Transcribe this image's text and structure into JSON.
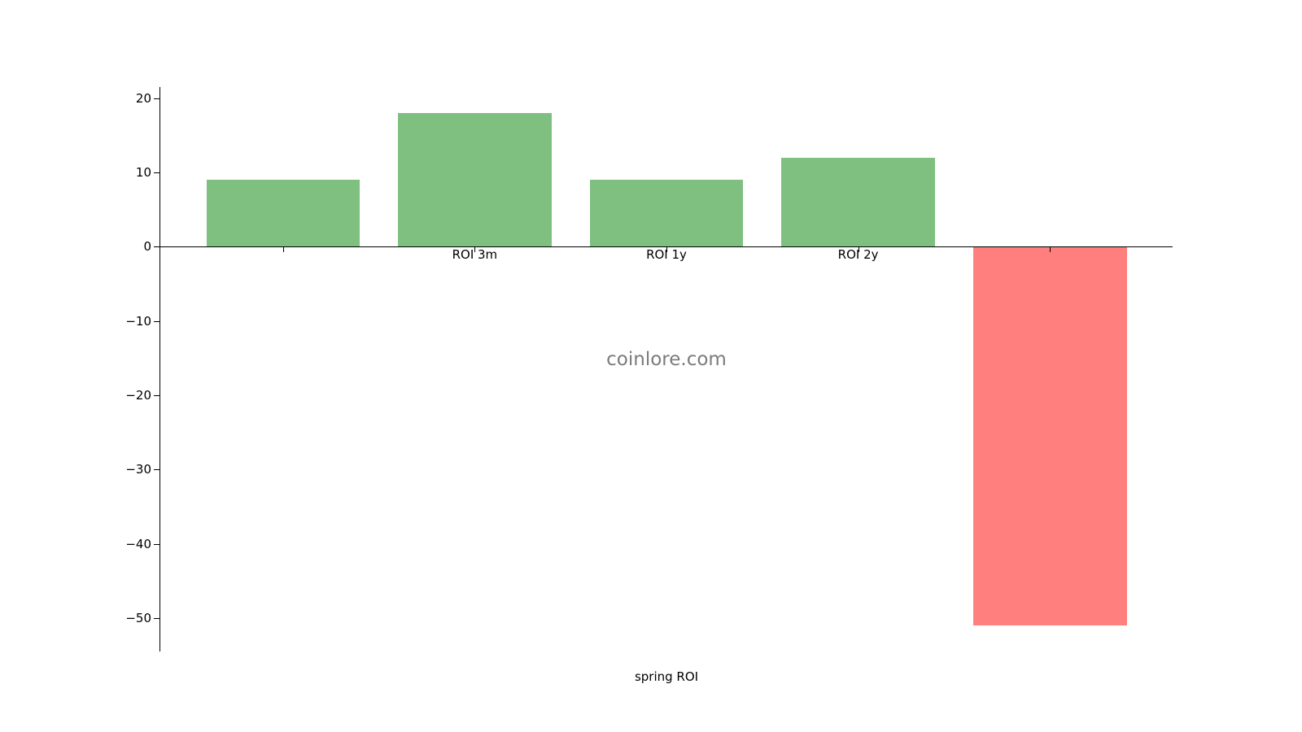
{
  "chart_data": {
    "type": "bar",
    "title": "",
    "xlabel": "spring ROI",
    "ylabel": "",
    "categories": [
      "",
      "ROI 3m",
      "ROI 1y",
      "ROI 2y",
      ""
    ],
    "values": [
      9,
      18,
      9,
      12,
      -51
    ],
    "bar_colors": [
      "#7fbf7f",
      "#7fbf7f",
      "#7fbf7f",
      "#7fbf7f",
      "#ff7f7f"
    ],
    "positive_color": "#7fbf7f",
    "negative_color": "#ff7f7f",
    "ylim": [
      -54.5,
      21.5
    ],
    "ytick_values": [
      20,
      10,
      0,
      -10,
      -20,
      -30,
      -40,
      -50
    ],
    "ytick_labels": [
      "20",
      "10",
      "0",
      "−10",
      "−20",
      "−30",
      "−40",
      "−50"
    ],
    "x_axis_position": "zero",
    "bar_width_fraction": 0.8,
    "grid": false,
    "legend": false
  },
  "watermark": {
    "text": "coinlore.com",
    "color": "#7b7b7b"
  },
  "colors": {
    "background": "#ffffff",
    "axis": "#000000"
  }
}
